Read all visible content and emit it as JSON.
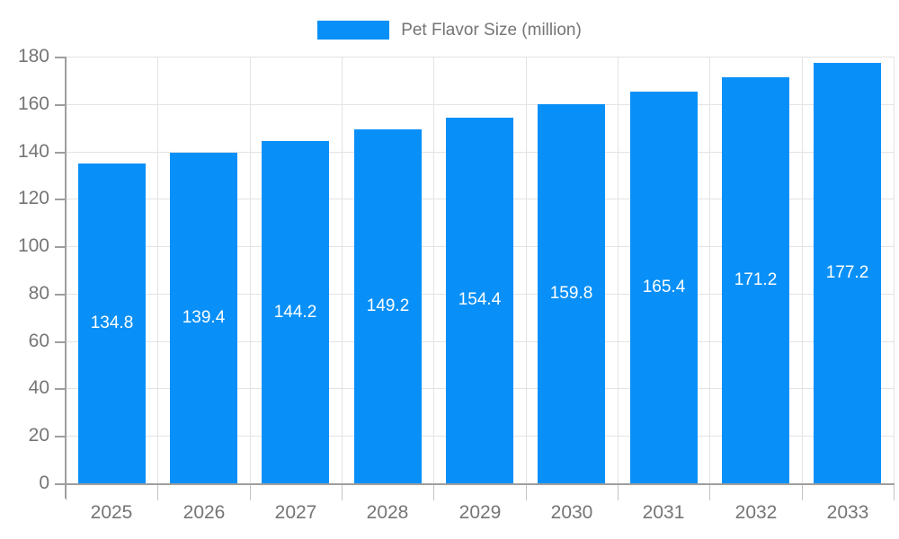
{
  "chart_data": {
    "type": "bar",
    "title": "Pet Flavor Size (million)",
    "legend": {
      "label": "Pet Flavor Size (million)",
      "position": "top-center"
    },
    "categories": [
      "2025",
      "2026",
      "2027",
      "2028",
      "2029",
      "2030",
      "2031",
      "2032",
      "2033"
    ],
    "series": [
      {
        "name": "Pet Flavor Size (million)",
        "values": [
          134.8,
          139.4,
          144.2,
          149.2,
          154.4,
          159.8,
          165.4,
          171.2,
          177.2
        ]
      }
    ],
    "value_labels": [
      "134.8",
      "139.4",
      "144.2",
      "149.2",
      "154.4",
      "159.8",
      "165.4",
      "171.2",
      "177.2"
    ],
    "xlabel": "",
    "ylabel": "",
    "ylim": [
      0,
      180
    ],
    "yticks": [
      0,
      20,
      40,
      60,
      80,
      100,
      120,
      140,
      160,
      180
    ],
    "grid": "on",
    "colors": {
      "bar": "#0990f8",
      "grid": "#e3e3e3",
      "axis": "#9e9e9e",
      "tick_minor": "#c4c4c4",
      "tick_text": "#757575",
      "bar_label_text": "#ffffff",
      "background": "#ffffff"
    }
  }
}
